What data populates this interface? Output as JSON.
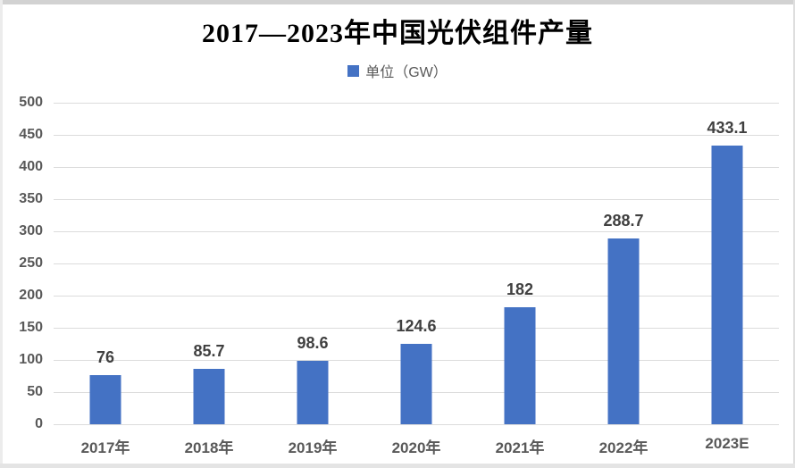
{
  "chart_data": {
    "type": "bar",
    "title": "2017—2023年中国光伏组件产量",
    "legend": {
      "label": "单位（GW）",
      "position": "top",
      "marker_color": "#4472c4"
    },
    "categories": [
      "2017年",
      "2018年",
      "2019年",
      "2020年",
      "2021年",
      "2022年",
      "2023E"
    ],
    "values": [
      76,
      85.7,
      98.6,
      124.6,
      182,
      288.7,
      433.1
    ],
    "data_labels": [
      "76",
      "85.7",
      "98.6",
      "124.6",
      "182",
      "288.7",
      "433.1"
    ],
    "xlabel": "",
    "ylabel": "",
    "ylim": [
      0,
      500
    ],
    "yticks": [
      0,
      50,
      100,
      150,
      200,
      250,
      300,
      350,
      400,
      450,
      500
    ],
    "grid": true,
    "bar_color": "#4472c4"
  },
  "colors": {
    "bar": "#4472c4",
    "gridline": "#dcdcdc",
    "axis_text": "#595959",
    "value_text": "#404040",
    "title_text": "#000000",
    "background": "#ffffff"
  }
}
